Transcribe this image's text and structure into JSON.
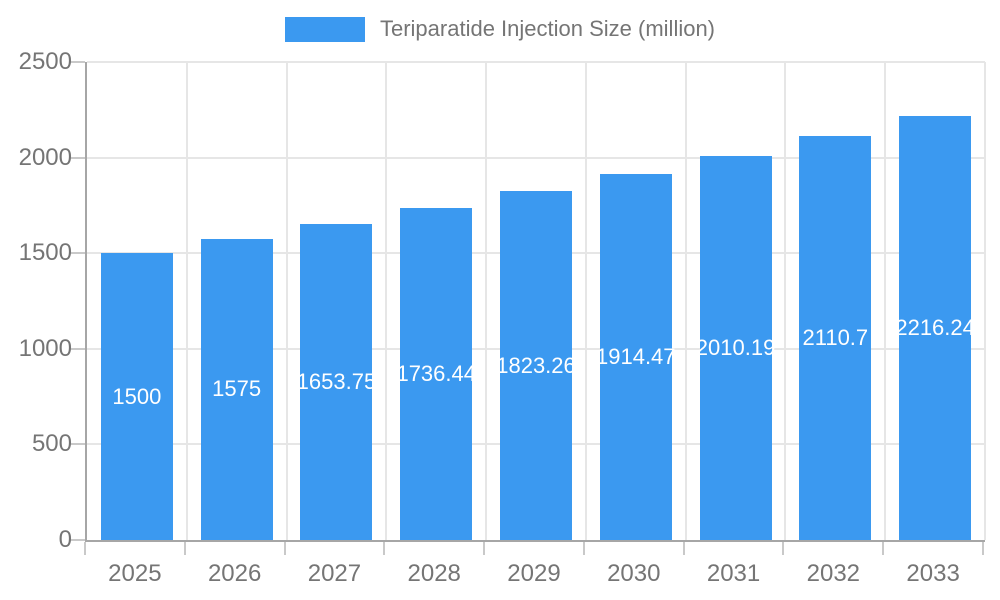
{
  "legend": {
    "label": "Teriparatide Injection Size (million)"
  },
  "colors": {
    "bar": "#3b99f0",
    "bar_label_text": "#ffffff",
    "axis_text": "#757575",
    "axis_line": "#a6a6a6",
    "tick_line": "#c9c9c9",
    "gridline": "#e6e6e6",
    "background": "#ffffff"
  },
  "chart_data": {
    "type": "bar",
    "title": "",
    "xlabel": "",
    "ylabel": "",
    "legend_entries": [
      "Teriparatide Injection Size (million)"
    ],
    "legend_position": "top-center",
    "categories": [
      "2025",
      "2026",
      "2027",
      "2028",
      "2029",
      "2030",
      "2031",
      "2032",
      "2033"
    ],
    "values": [
      1500,
      1575,
      1653.75,
      1736.44,
      1823.26,
      1914.47,
      2010.19,
      2110.7,
      2216.24
    ],
    "value_labels": [
      "1500",
      "1575",
      "1653.75",
      "1736.44",
      "1823.26",
      "1914.47",
      "2010.19",
      "2110.7",
      "2216.24"
    ],
    "ylim": [
      0,
      2500
    ],
    "yticks": [
      0,
      500,
      1000,
      1500,
      2000,
      2500
    ],
    "ytick_labels": [
      "0",
      "500",
      "1000",
      "1500",
      "2000",
      "2500"
    ],
    "grid": true,
    "bar_labels_inside": true
  }
}
